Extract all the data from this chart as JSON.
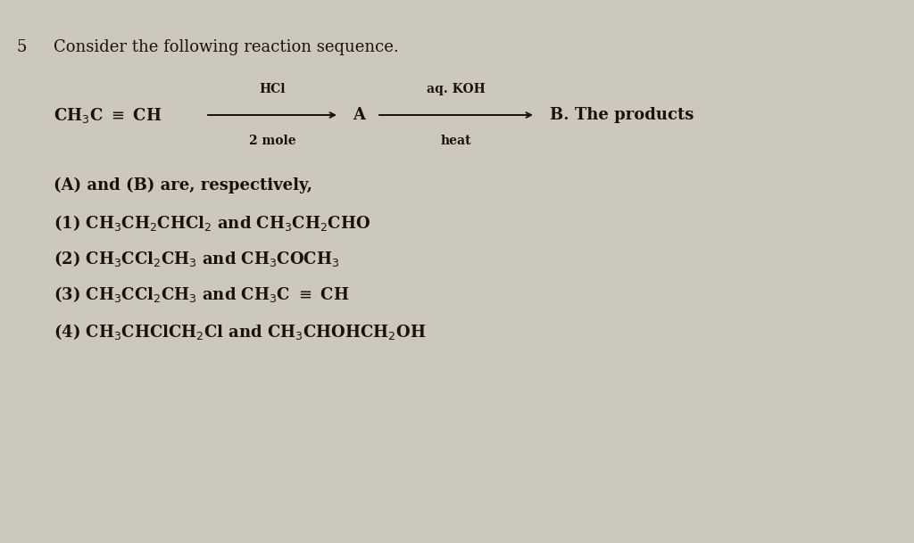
{
  "background_color": "#cdc8be",
  "question_number": "5",
  "title_text": "Consider the following reaction sequence.",
  "reagent1_top": "HCl",
  "reagent1_bottom": "2 mole",
  "middle_label": "A",
  "reagent2_top": "aq. KOH",
  "reagent2_bottom": "heat",
  "end_label": "B. The products",
  "subtitle": "(A) and (B) are, respectively,",
  "font_color": "#1a1208",
  "font_size_title": 13,
  "font_size_body": 13,
  "font_size_reaction": 13,
  "font_size_reagent": 10
}
